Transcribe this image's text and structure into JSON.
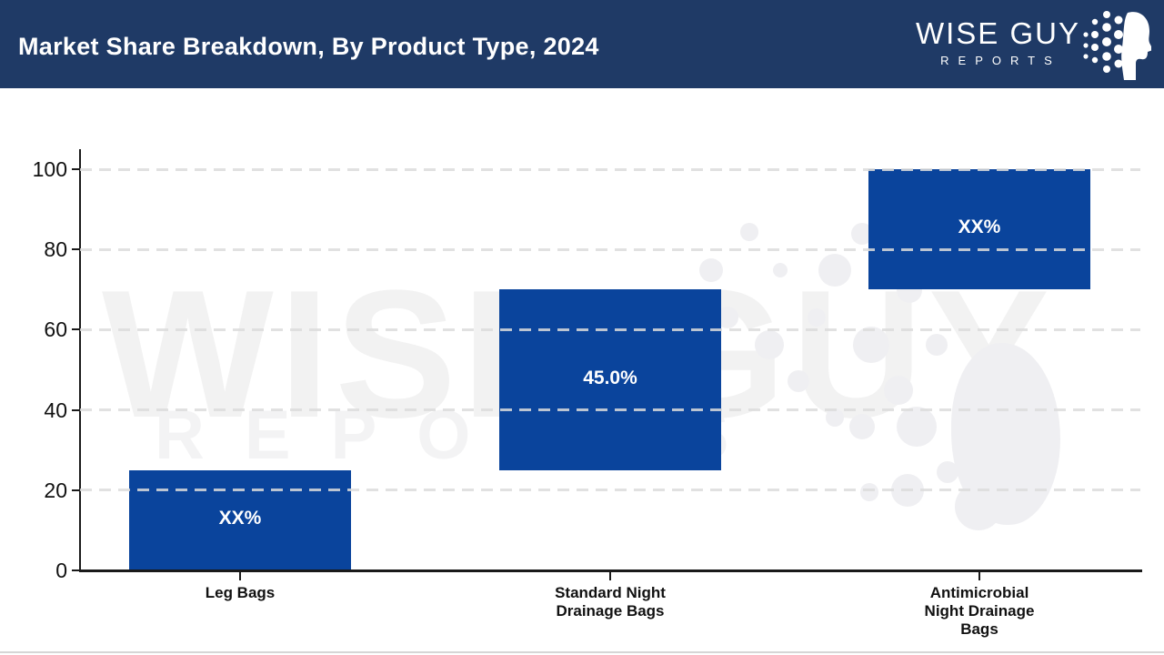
{
  "header": {
    "bg_color": "#1F3A66",
    "title": "Market Share Breakdown, By Product Type, 2024",
    "logo": {
      "line1": "WISE GUY",
      "line2": "REPORTS"
    }
  },
  "watermark": {
    "line1": "WISE GUY",
    "line2": "REPORTS"
  },
  "chart_data": {
    "type": "bar",
    "subtype": "waterfall",
    "title": "Market Share Breakdown, By Product Type, 2024",
    "xlabel": "",
    "ylabel": "",
    "categories": [
      "Leg Bags",
      "Standard Night\nDrainage Bags",
      "Antimicrobial\nNight Drainage\nBags"
    ],
    "segments": [
      {
        "category": "Leg Bags",
        "start": 0,
        "end": 25,
        "label": "XX%"
      },
      {
        "category": "Standard Night Drainage Bags",
        "start": 25,
        "end": 70,
        "label": "45.0%"
      },
      {
        "category": "Antimicrobial Night Drainage Bags",
        "start": 70,
        "end": 100,
        "label": "XX%"
      }
    ],
    "yticks": [
      0,
      20,
      40,
      60,
      80,
      100
    ],
    "ylim": [
      0,
      105
    ],
    "grid": true,
    "gridlines_on_top": true,
    "legend": "none",
    "bar_color": "#0A449C",
    "bar_label_color": "#FFFFFF",
    "gridline_color": "#DCDCDC",
    "axis_color": "#1A1A1A",
    "tick_label_color": "#111111"
  }
}
